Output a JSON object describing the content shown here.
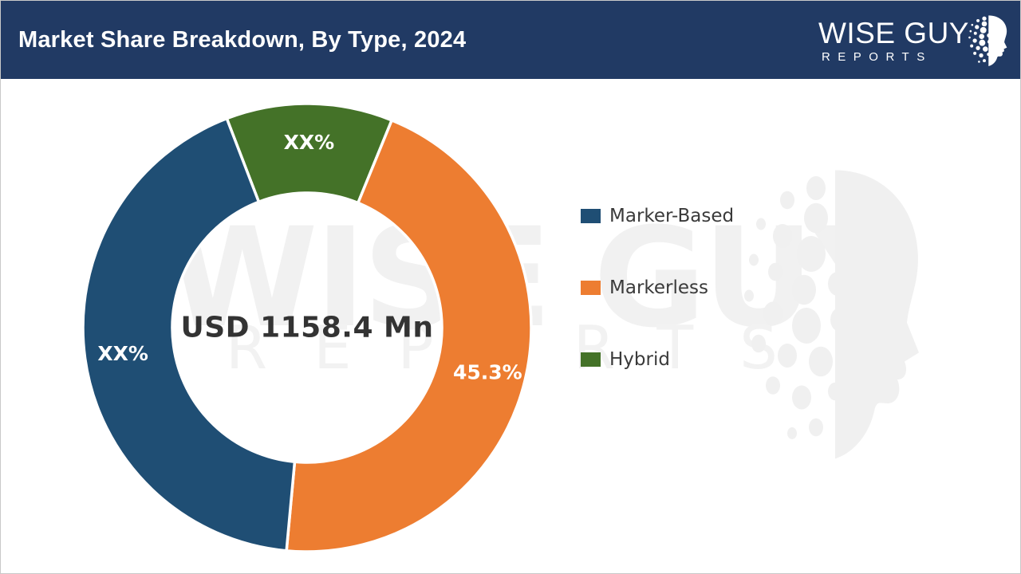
{
  "header": {
    "title": "Market Share Breakdown, By Type, 2024",
    "bg_color": "#213A64",
    "logo": {
      "line1": "WISE GUY",
      "line2": "REPORTS"
    }
  },
  "watermark": {
    "line1": "WISE GUY",
    "line2": "REPORTS"
  },
  "chart_data": {
    "type": "pie",
    "donut": true,
    "title": "Market Share Breakdown, By Type, 2024",
    "center_label": "USD 1158.4 Mn",
    "units": "percent",
    "start_angle_deg": -21,
    "slices": [
      {
        "name": "Hybrid",
        "label": "XX%",
        "pct": 12.0,
        "color": "#447228"
      },
      {
        "name": "Markerless",
        "label": "45.3%",
        "pct": 45.3,
        "color": "#ED7D31"
      },
      {
        "name": "Marker-Based",
        "label": "XX%",
        "pct": 42.7,
        "color": "#1F4E74"
      }
    ],
    "legend": [
      {
        "label": "Marker-Based",
        "color": "#1F4E74"
      },
      {
        "label": "Markerless",
        "color": "#ED7D31"
      },
      {
        "label": "Hybrid",
        "color": "#447228"
      }
    ],
    "legend_position": "right",
    "slice_border_color": "#ffffff",
    "label_color": "#ffffff"
  }
}
